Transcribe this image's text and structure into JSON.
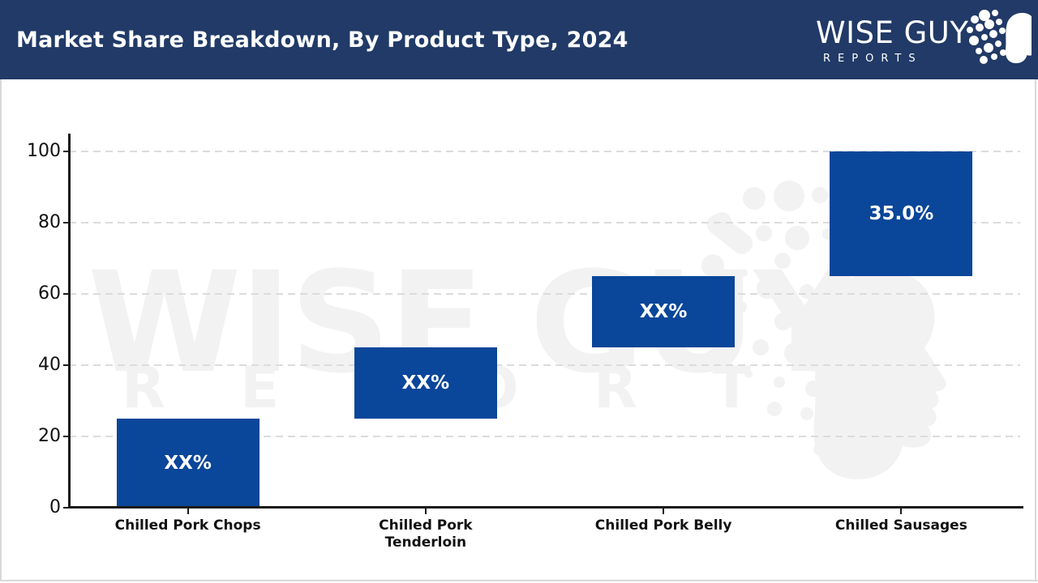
{
  "header": {
    "title": "Market Share Breakdown, By Product Type, 2024",
    "bg_color": "#213A67",
    "logo": {
      "name": "WISE GUY",
      "sub": "R E P O R T S"
    }
  },
  "watermark": {
    "line1": "WISE GUY",
    "line2": "R E P O R T S"
  },
  "chart_data": {
    "type": "bar",
    "variant": "floating stacked breakdown (each bar spans its cumulative share range)",
    "title": "Market Share Breakdown, By Product Type, 2024",
    "categories": [
      "Chilled Pork Chops",
      "Chilled Pork\nTenderloin",
      "Chilled Pork Belly",
      "Chilled Sausages"
    ],
    "segments": [
      {
        "category": "Chilled Pork Chops",
        "start": 0,
        "end": 25,
        "label": "XX%"
      },
      {
        "category": "Chilled Pork Tenderloin",
        "start": 25,
        "end": 45,
        "label": "XX%"
      },
      {
        "category": "Chilled Pork Belly",
        "start": 45,
        "end": 65,
        "label": "XX%"
      },
      {
        "category": "Chilled Sausages",
        "start": 65,
        "end": 100,
        "label": "35.0%"
      }
    ],
    "xlabel": "",
    "ylabel": "",
    "ylim": [
      0,
      100
    ],
    "yticks": [
      0,
      20,
      40,
      60,
      80,
      100
    ],
    "grid": "horizontal dashed",
    "legend": "none",
    "bar_color": "#0A4699",
    "bar_label_color": "#ffffff",
    "gridline_color": "#DCDCDC",
    "axis_color": "#1A1A1A"
  }
}
